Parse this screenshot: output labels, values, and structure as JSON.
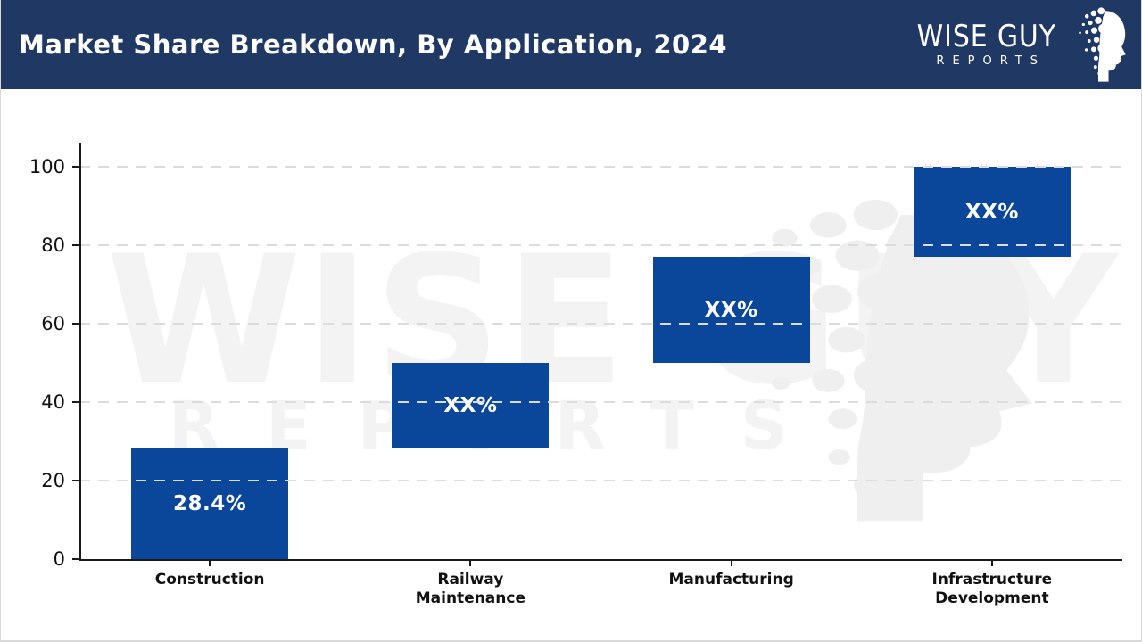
{
  "header": {
    "title": "Market Share Breakdown, By Application, 2024",
    "logo": {
      "line1": "WISE GUY",
      "line2": "REPORTS"
    }
  },
  "watermark": {
    "line1": "WISE GUY",
    "line2": "REPORTS"
  },
  "chart_data": {
    "type": "bar",
    "subtype": "waterfall",
    "title": "Market Share Breakdown, By Application, 2024",
    "xlabel": "",
    "ylabel": "",
    "categories": [
      "Construction",
      "Railway\nMaintenance",
      "Manufacturing",
      "Infrastructure\nDevelopment"
    ],
    "segments": [
      {
        "category": "Construction",
        "start": 0,
        "end": 28.4,
        "value_label": "28.4%"
      },
      {
        "category": "Railway Maintenance",
        "start": 28.4,
        "end": 50,
        "value_label": "XX%"
      },
      {
        "category": "Manufacturing",
        "start": 50,
        "end": 77,
        "value_label": "XX%"
      },
      {
        "category": "Infrastructure Development",
        "start": 77,
        "end": 100,
        "value_label": "XX%"
      }
    ],
    "yticks": [
      0,
      20,
      40,
      60,
      80,
      100
    ],
    "ylim": [
      0,
      105
    ],
    "grid": "horizontal-dashed",
    "legend": "none"
  },
  "colors": {
    "header_bg": "#1f3864",
    "bar": "#0a4699",
    "grid": "#dcdcdc",
    "axis": "#1a1a1a",
    "watermark": "#f3f3f3",
    "title_text": "#ffffff"
  }
}
